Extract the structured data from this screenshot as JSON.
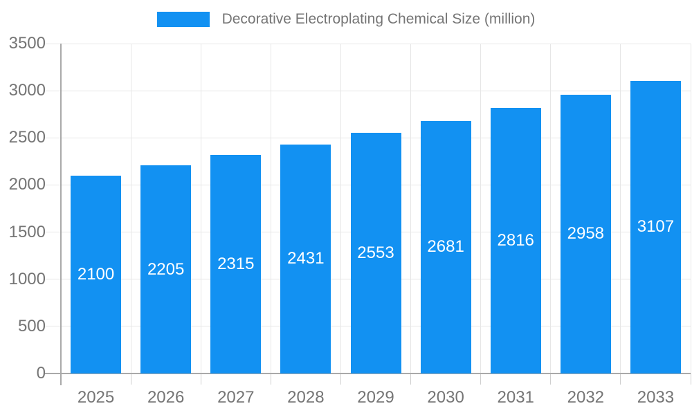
{
  "legend": {
    "series_label": "Decorative Electroplating Chemical Size (million)"
  },
  "colors": {
    "bar": "#1291F2",
    "bar_label": "#FFFFFF",
    "axis_label": "#757575",
    "grid": "#E6E6E6",
    "axis_line": "#A9A9A9",
    "category_tick": "#CFCFCF",
    "background": "#FFFFFF"
  },
  "chart_data": {
    "type": "bar",
    "title": "Decorative Electroplating Chemical Size (million)",
    "categories": [
      "2025",
      "2026",
      "2027",
      "2028",
      "2029",
      "2030",
      "2031",
      "2032",
      "2033"
    ],
    "values": [
      2100,
      2205,
      2315,
      2431,
      2553,
      2681,
      2816,
      2958,
      3107
    ],
    "xlabel": "",
    "ylabel": "",
    "ylim": [
      0,
      3500
    ],
    "yticks": [
      0,
      500,
      1000,
      1500,
      2000,
      2500,
      3000,
      3500
    ],
    "grid": true,
    "legend_position": "top",
    "bar_value_labels": true
  }
}
